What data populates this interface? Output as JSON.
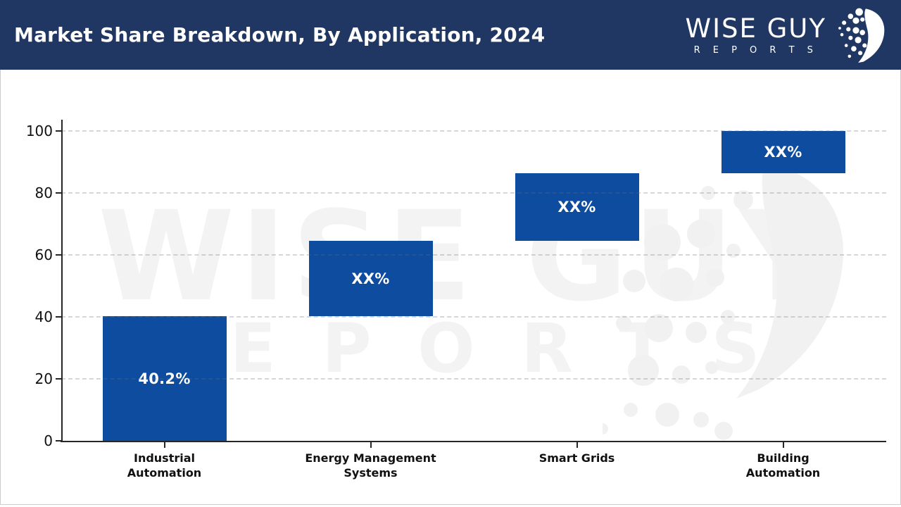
{
  "header": {
    "title": "Market Share Breakdown, By Application, 2024",
    "logo": {
      "line1": "WISE GUY",
      "line2": "R E P O R T S"
    }
  },
  "watermark": {
    "line1": "WISE GUY",
    "line2": "R E P O R T S"
  },
  "colors": {
    "header_bg": "#203763",
    "bar": "#0d4c9f",
    "grid": "#d9d9d9",
    "axis": "#262626",
    "watermark": "#f3f3f3",
    "bar_label_text": "#ffffff",
    "title_text": "#ffffff"
  },
  "chart_data": {
    "type": "bar",
    "subtype": "waterfall",
    "title": "Market Share Breakdown, By Application, 2024",
    "categories": [
      "Industrial Automation",
      "Energy Management Systems",
      "Smart Grids",
      "Building Automation"
    ],
    "category_lines": [
      [
        "Industrial",
        "Automation"
      ],
      [
        "Energy Management",
        "Systems"
      ],
      [
        "Smart Grids"
      ],
      [
        "Building",
        "Automation"
      ]
    ],
    "segments": [
      {
        "category": "Industrial Automation",
        "start": 0,
        "end": 40.2,
        "label": "40.2%"
      },
      {
        "category": "Energy Management Systems",
        "start": 40.2,
        "end": 64.5,
        "label": "XX%"
      },
      {
        "category": "Smart Grids",
        "start": 64.5,
        "end": 86.4,
        "label": "XX%"
      },
      {
        "category": "Building Automation",
        "start": 86.4,
        "end": 100,
        "label": "XX%"
      }
    ],
    "xlabel": "",
    "ylabel": "",
    "yticks": [
      0,
      20,
      40,
      60,
      80,
      100
    ],
    "ylim": [
      0,
      103.5
    ],
    "grid": "horizontal-dashed",
    "legend": "none"
  }
}
